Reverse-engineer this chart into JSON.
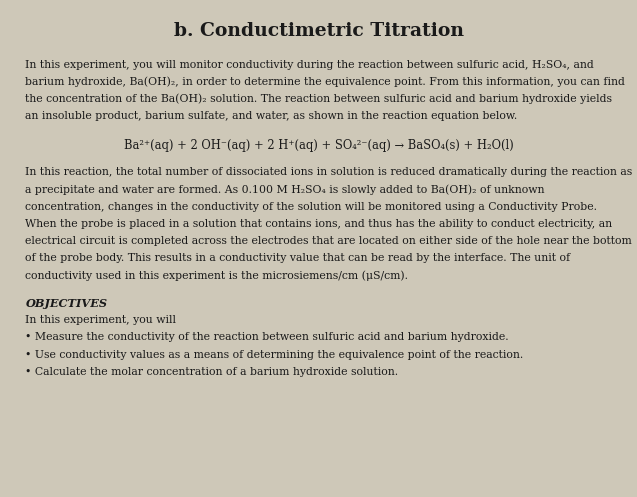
{
  "title": "b. Conductimetric Titration",
  "background_color": "#cec8b8",
  "text_color": "#1a1a1a",
  "para1_lines": [
    "In this experiment, you will monitor conductivity during the reaction between sulfuric acid, H₂SO₄, and",
    "barium hydroxide, Ba(OH)₂, in order to determine the equivalence point. From this information, you can find",
    "the concentration of the Ba(OH)₂ solution. The reaction between sulfuric acid and barium hydroxide yields",
    "an insoluble product, barium sulfate, and water, as shown in the reaction equation below."
  ],
  "equation": "Ba²⁺(aq) + 2 OH⁻(aq) + 2 H⁺(aq) + SO₄²⁻(aq) → BaSO₄(s) + H₂O(l)",
  "para2_lines": [
    "In this reaction, the total number of dissociated ions in solution is reduced dramatically during the reaction as",
    "a precipitate and water are formed. As 0.100 M H₂SO₄ is slowly added to Ba(OH)₂ of unknown",
    "concentration, changes in the conductivity of the solution will be monitored using a Conductivity Probe.",
    "When the probe is placed in a solution that contains ions, and thus has the ability to conduct electricity, an",
    "electrical circuit is completed across the electrodes that are located on either side of the hole near the bottom",
    "of the probe body. This results in a conductivity value that can be read by the interface. The unit of",
    "conductivity used in this experiment is the microsiemens/cm (μS/cm)."
  ],
  "obj_title": "OBJECTIVES",
  "obj_intro": "In this experiment, you will",
  "obj_bullets": [
    "• Measure the conductivity of the reaction between sulfuric acid and barium hydroxide.",
    "• Use conductivity values as a means of determining the equivalence point of the reaction.",
    "• Calculate the molar concentration of a barium hydroxide solution."
  ],
  "title_fontsize": 13.5,
  "body_fontsize": 7.8,
  "obj_title_fontsize": 8.2
}
